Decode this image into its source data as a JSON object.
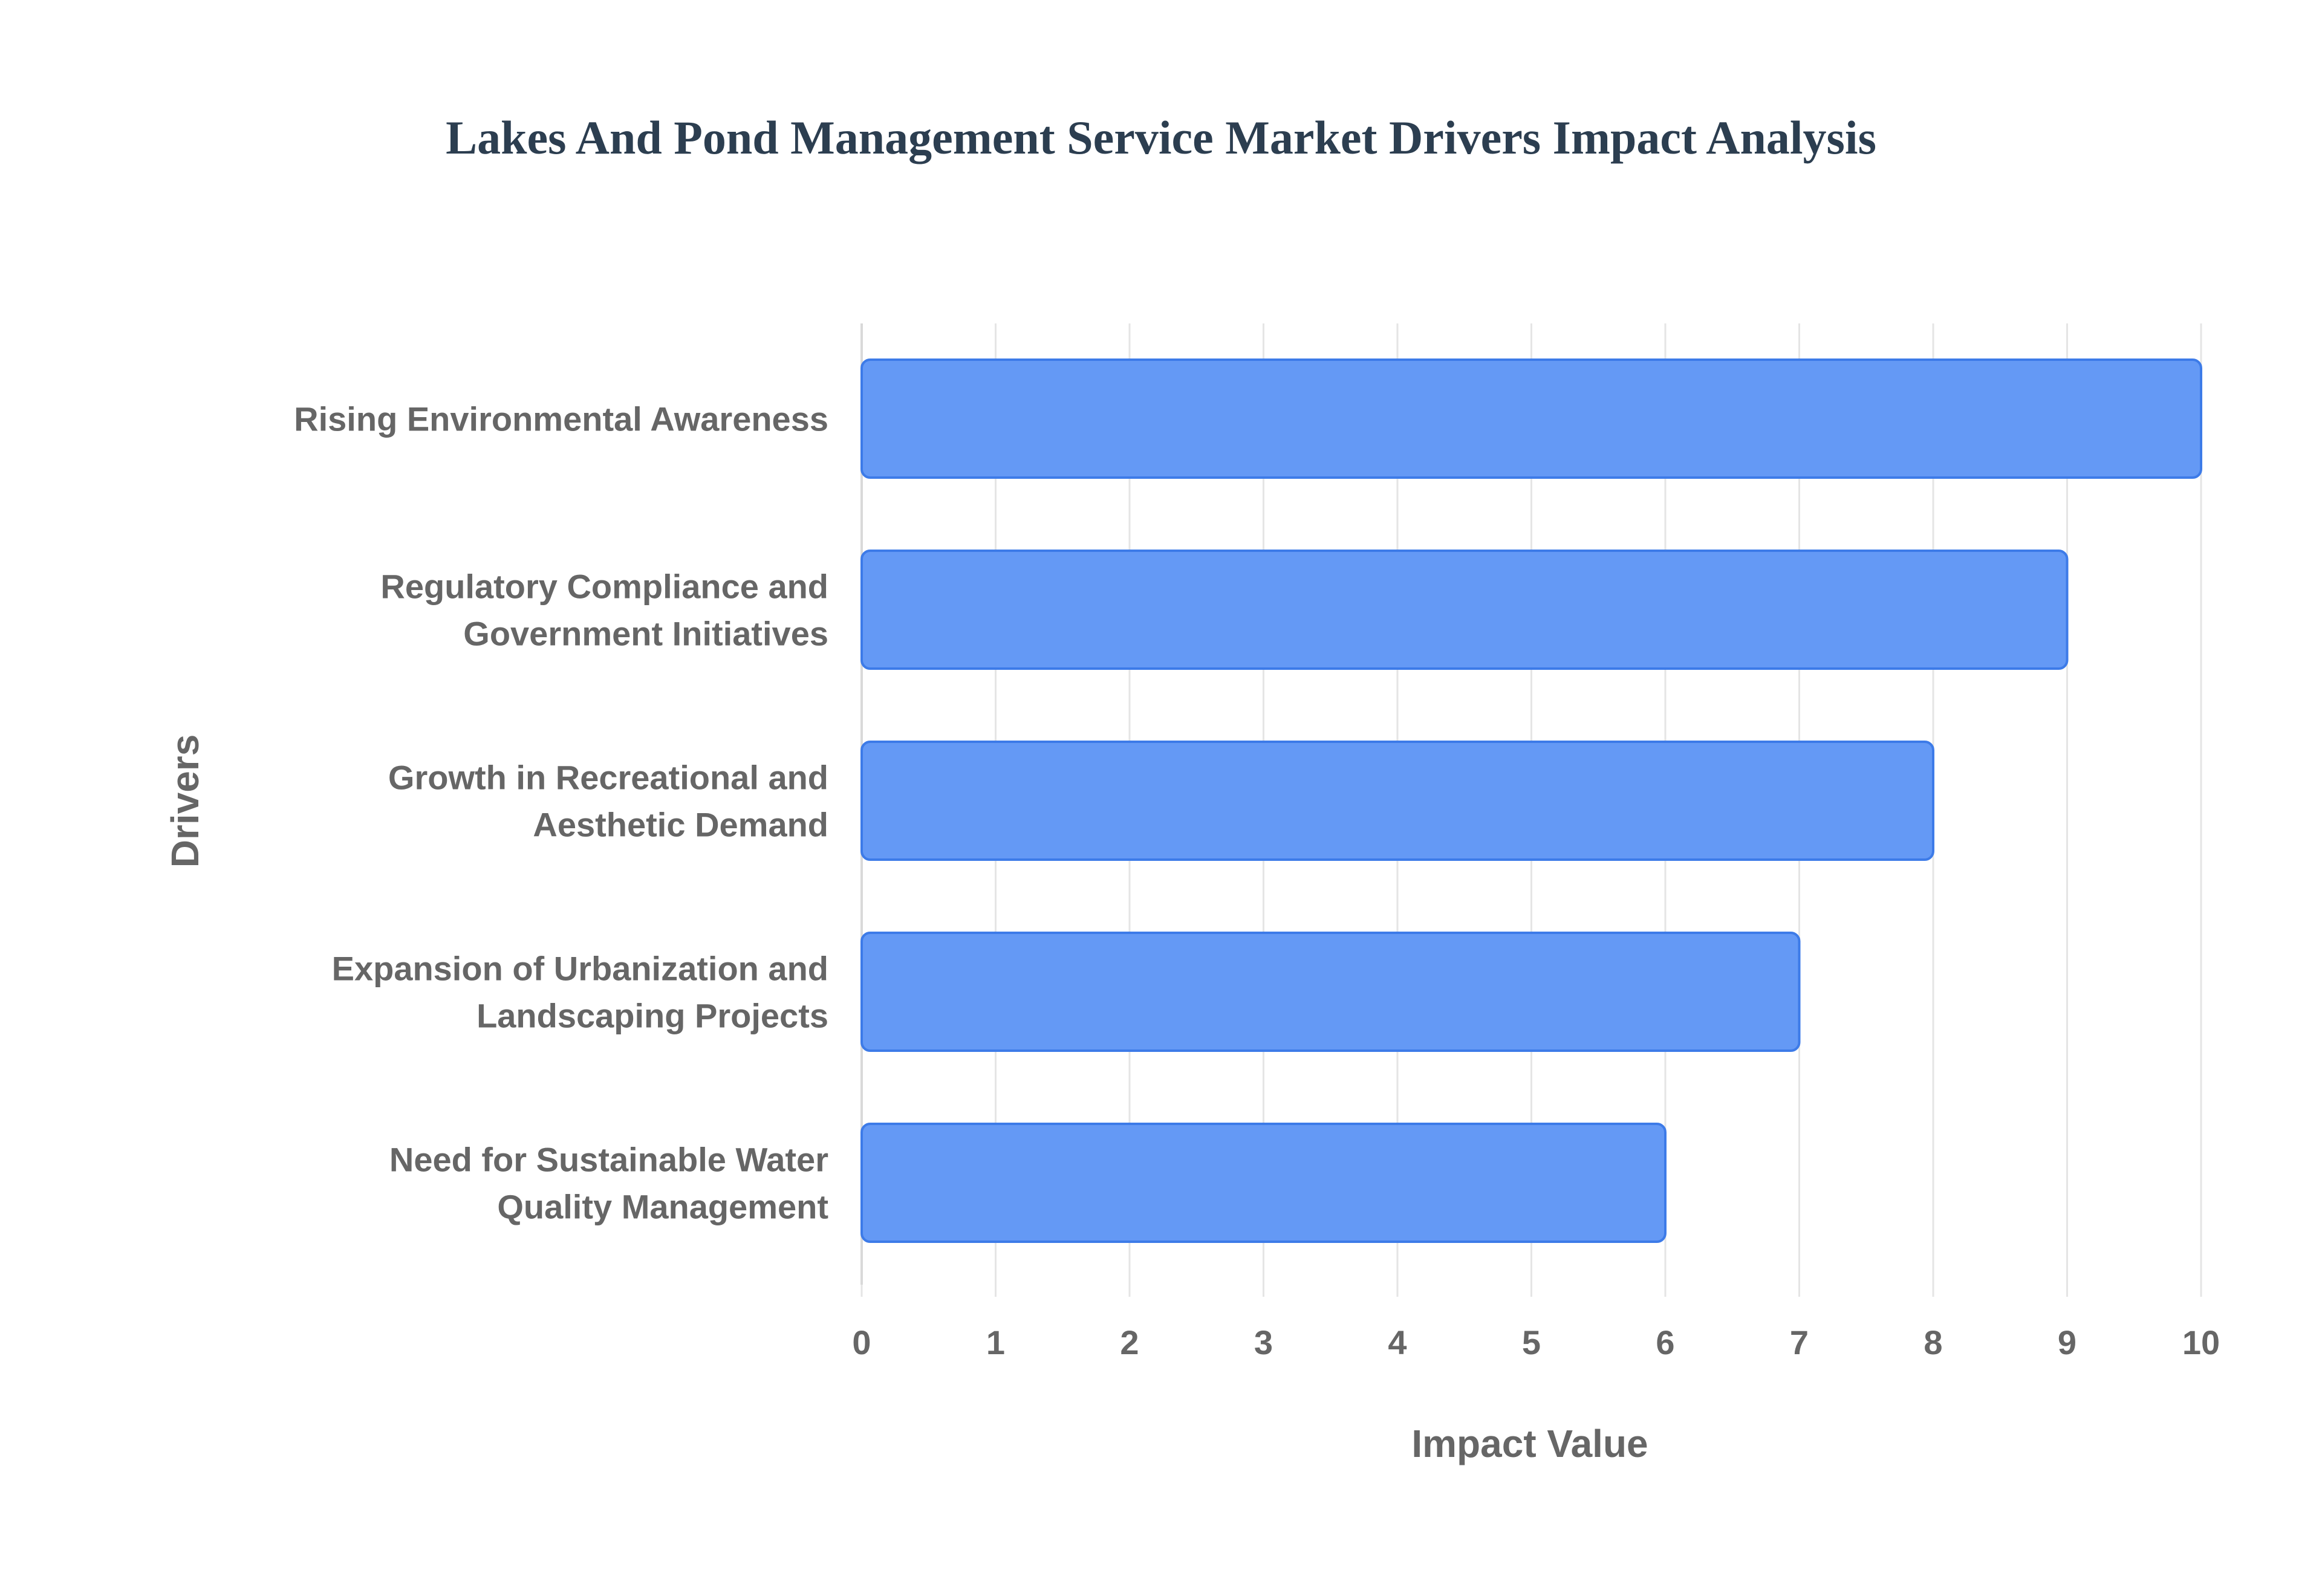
{
  "chart_data": {
    "type": "bar",
    "orientation": "horizontal",
    "title": "Lakes And Pond Management Service Market Drivers Impact Analysis",
    "xlabel": "Impact Value",
    "ylabel": "Drivers",
    "categories": [
      [
        "Rising Environmental Awareness"
      ],
      [
        "Regulatory Compliance and",
        "Government Initiatives"
      ],
      [
        "Growth in Recreational and",
        "Aesthetic Demand"
      ],
      [
        "Expansion of Urbanization and",
        "Landscaping Projects"
      ],
      [
        "Need for Sustainable Water",
        "Quality Management"
      ]
    ],
    "values": [
      10,
      9,
      8,
      7,
      6
    ],
    "xlim": [
      0,
      10
    ],
    "xticks": [
      "0",
      "1",
      "2",
      "3",
      "4",
      "5",
      "6",
      "7",
      "8",
      "9",
      "10"
    ],
    "grid": true,
    "legend": "none",
    "colors": {
      "bar_fill": "#6499f5",
      "bar_stroke": "#3d7be8",
      "title": "#2c3e50",
      "label": "#666666",
      "grid": "#e5e5e5",
      "axis": "#d9d9d9"
    }
  }
}
